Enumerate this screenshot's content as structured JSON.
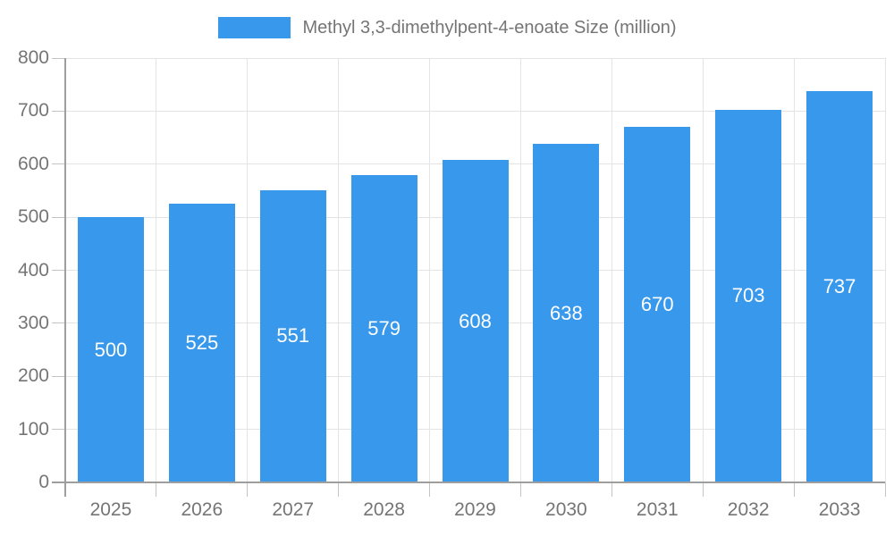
{
  "legend": {
    "label": "Methyl 3,3-dimethylpent-4-enoate Size (million)"
  },
  "colors": {
    "bar": "#3898ec",
    "axis": "#9e9e9e",
    "grid": "#e4e4e4",
    "tick": "#c4c4c4",
    "axis_label": "#757575",
    "value_label": "#ffffff",
    "background": "#ffffff"
  },
  "chart_data": {
    "type": "bar",
    "title": "Methyl 3,3-dimethylpent-4-enoate Size (million)",
    "categories": [
      "2025",
      "2026",
      "2027",
      "2028",
      "2029",
      "2030",
      "2031",
      "2032",
      "2033"
    ],
    "values": [
      500,
      525,
      551,
      579,
      608,
      638,
      670,
      703,
      737
    ],
    "series_name": "Methyl 3,3-dimethylpent-4-enoate Size (million)",
    "xlabel": "",
    "ylabel": "",
    "ylim": [
      0,
      800
    ],
    "yticks": [
      0,
      100,
      200,
      300,
      400,
      500,
      600,
      700,
      800
    ],
    "grid": "both",
    "legend_position": "top",
    "value_labels": "inside-center"
  }
}
